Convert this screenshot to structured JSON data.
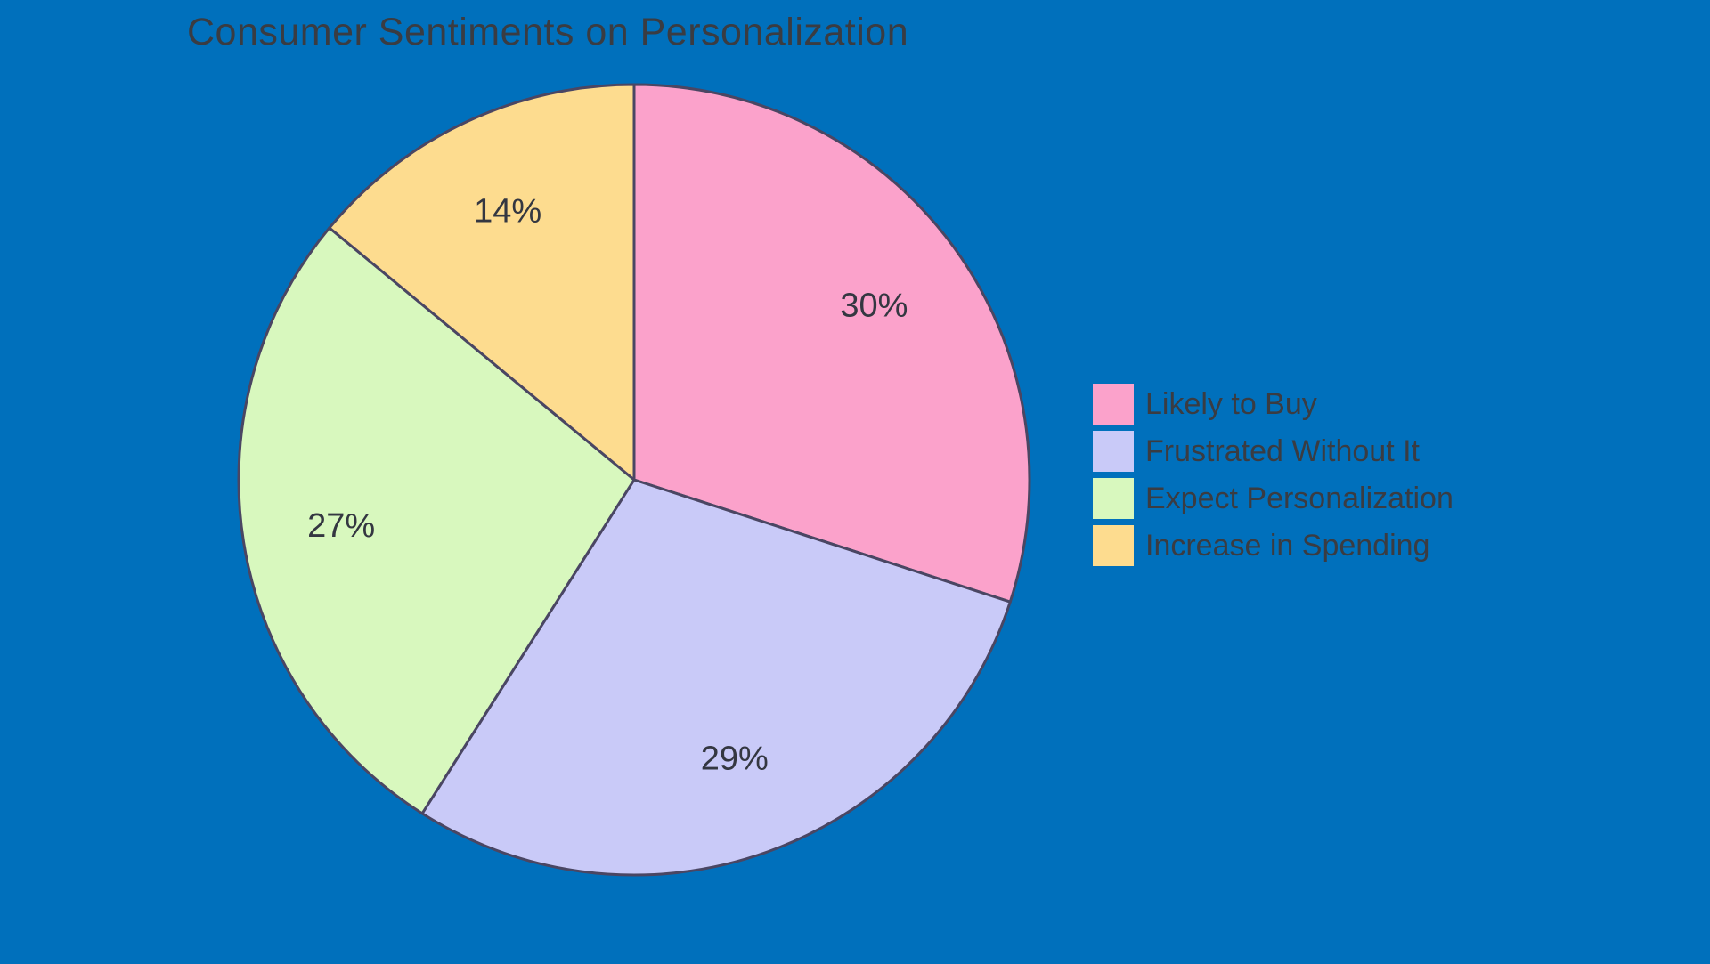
{
  "page": {
    "background_color": "#0070BC"
  },
  "chart_data": {
    "type": "pie",
    "title": "Consumer Sentiments on Personalization",
    "categories": [
      "Likely to Buy",
      "Frustrated Without It",
      "Expect Personalization",
      "Increase in Spending"
    ],
    "values": [
      30,
      29,
      27,
      14
    ],
    "unit": "percent",
    "slices": [
      {
        "label": "Likely to Buy",
        "value": 30,
        "pct_label": "30%",
        "color": "#FBA2CB"
      },
      {
        "label": "Frustrated Without It",
        "value": 29,
        "pct_label": "29%",
        "color": "#C9CAF8"
      },
      {
        "label": "Expect Personalization",
        "value": 27,
        "pct_label": "27%",
        "color": "#D8F8BE"
      },
      {
        "label": "Increase in Spending",
        "value": 14,
        "pct_label": "14%",
        "color": "#FDDC8F"
      }
    ],
    "start_angle_deg": 0,
    "direction": "clockwise",
    "labels_inside": true,
    "label_radius_fraction": 0.75,
    "slice_stroke_color": "#4A4663",
    "slice_stroke_width": 3,
    "label_color": "#343741",
    "title_color": "#3A3C42",
    "legend_position": "right",
    "legend_text_color": "#3A3C42",
    "grid": false
  }
}
